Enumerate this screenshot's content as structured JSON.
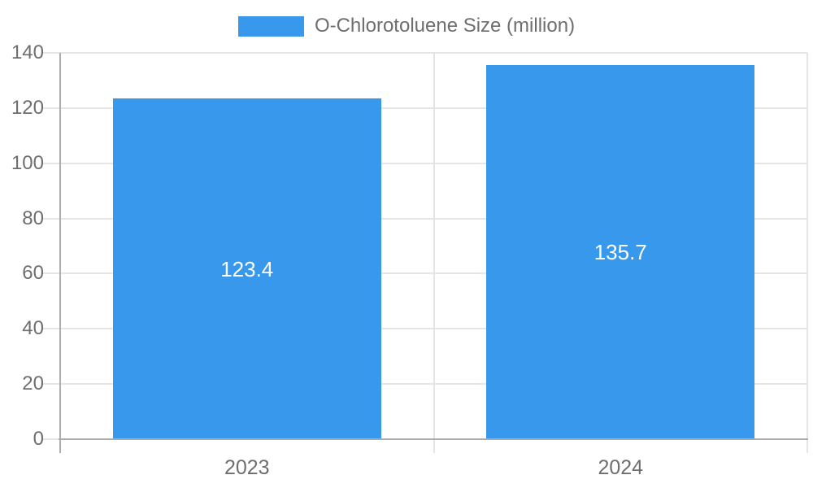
{
  "legend": {
    "label": "O-Chlorotoluene Size (million)"
  },
  "chart_data": {
    "type": "bar",
    "title": "",
    "xlabel": "",
    "ylabel": "",
    "categories": [
      "2023",
      "2024"
    ],
    "values": [
      123.4,
      135.7
    ],
    "value_labels": [
      "123.4",
      "135.7"
    ],
    "series": [
      {
        "name": "O-Chlorotoluene Size (million)",
        "values": [
          123.4,
          135.7
        ]
      }
    ],
    "yticks": [
      0,
      20,
      40,
      60,
      80,
      100,
      120,
      140
    ],
    "ylim": [
      0,
      140
    ],
    "grid": true,
    "legend_position": "top",
    "colors": {
      "bar": "#3899EC",
      "grid": "#E5E5E5",
      "axis": "#ACACAC",
      "tick_text": "#6E6E6E",
      "value_text": "#FFFFFF",
      "background": "#FFFFFF"
    }
  }
}
